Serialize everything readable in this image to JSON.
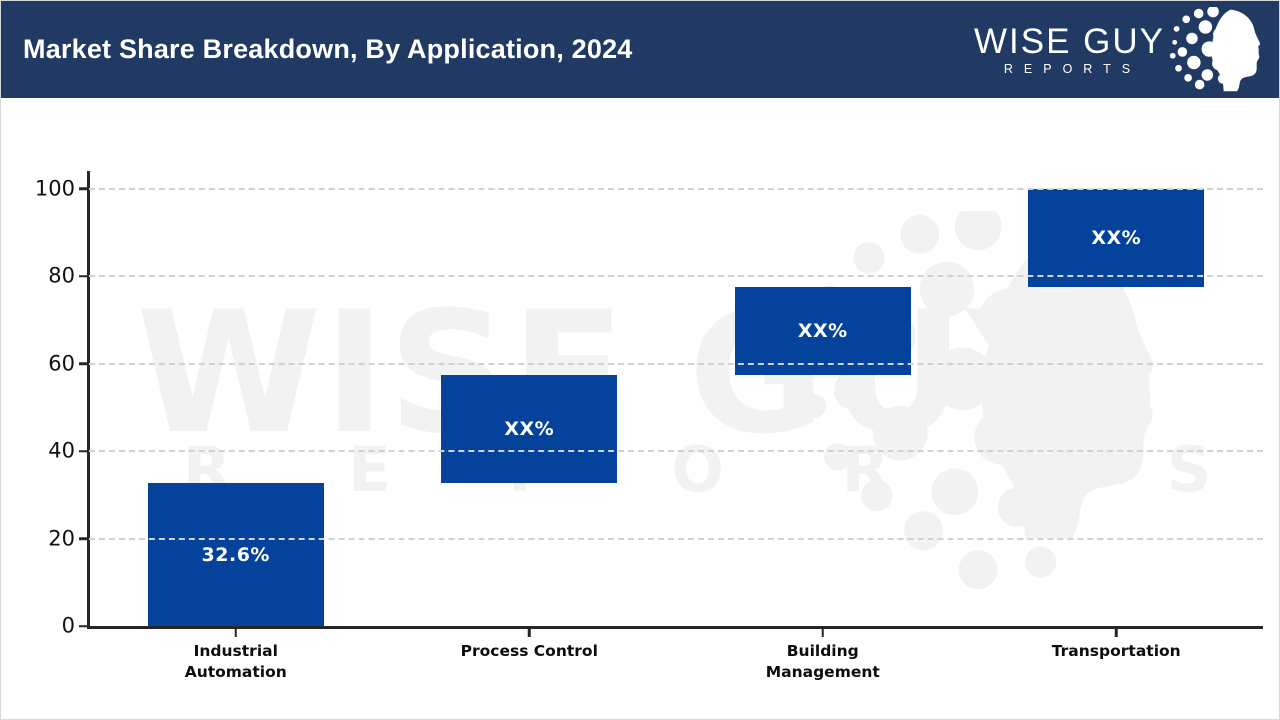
{
  "header": {
    "title": "Market Share Breakdown, By Application, 2024",
    "bg_color": "#203a64",
    "logo": {
      "wordmark": "WISE GUY",
      "sub": "REPORTS"
    }
  },
  "watermark": {
    "wordmark": "WISE GUY",
    "reports": "R E P O R T S"
  },
  "chart_data": {
    "type": "bar",
    "subtype": "waterfall",
    "title": "Market Share Breakdown, By Application, 2024",
    "xlabel": "",
    "ylabel": "",
    "ylim": [
      0,
      104
    ],
    "yticks": [
      0,
      20,
      40,
      60,
      80,
      100
    ],
    "grid": "horizontal-dashed",
    "legend": "none",
    "bar_color": "#05429b",
    "value_label_color": "#ffffff",
    "categories": [
      "Industrial Automation",
      "Process Control",
      "Building Management",
      "Transportation"
    ],
    "category_label_lines": [
      [
        "Industrial",
        "Automation"
      ],
      [
        "Process Control"
      ],
      [
        "Building",
        "Management"
      ],
      [
        "Transportation"
      ]
    ],
    "segments": [
      {
        "category": "Industrial Automation",
        "start": 0,
        "end": 32.6,
        "value": 32.6,
        "value_label": "32.6%"
      },
      {
        "category": "Process Control",
        "start": 32.6,
        "end": 57.3,
        "value": 24.7,
        "value_label": "XX%"
      },
      {
        "category": "Building Management",
        "start": 57.3,
        "end": 77.5,
        "value": 20.2,
        "value_label": "XX%"
      },
      {
        "category": "Transportation",
        "start": 77.5,
        "end": 100,
        "value": 22.5,
        "value_label": "XX%"
      }
    ]
  }
}
